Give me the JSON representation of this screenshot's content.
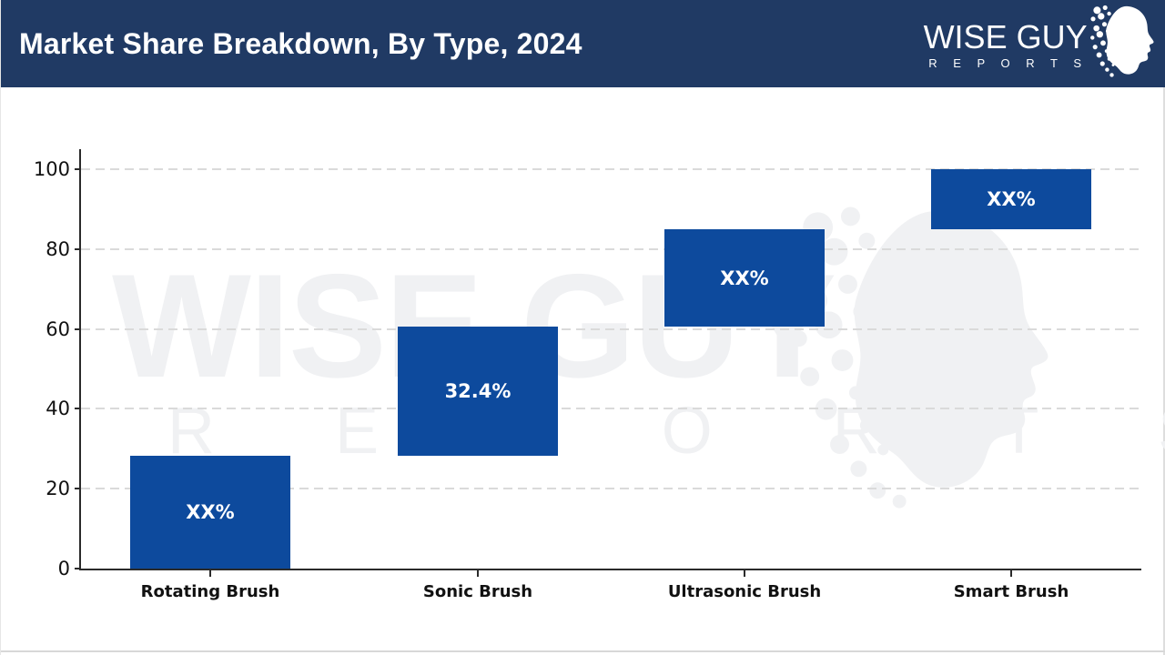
{
  "header": {
    "title": "Market Share Breakdown, By Type, 2024",
    "background_color": "#203a64",
    "logo": {
      "line1": "WISE GUY",
      "line2": "R E P O R T S"
    }
  },
  "watermark": {
    "line1": "WISE GUY",
    "line2": "R E P O R T S"
  },
  "chart_data": {
    "type": "bar",
    "subtype": "waterfall",
    "title": "Market Share Breakdown, By Type, 2024",
    "categories": [
      "Rotating Brush",
      "Sonic Brush",
      "Ultrasonic Brush",
      "Smart Brush"
    ],
    "segments": [
      {
        "category": "Rotating Brush",
        "start": 0,
        "end": 28.2,
        "label": "XX%"
      },
      {
        "category": "Sonic Brush",
        "start": 28.2,
        "end": 60.6,
        "label": "32.4%"
      },
      {
        "category": "Ultrasonic Brush",
        "start": 60.6,
        "end": 84.9,
        "label": "XX%"
      },
      {
        "category": "Smart Brush",
        "start": 84.9,
        "end": 100,
        "label": "XX%"
      }
    ],
    "yticks": [
      0,
      20,
      40,
      60,
      80,
      100
    ],
    "ylim": [
      0,
      105
    ],
    "xlabel": "",
    "ylabel": "",
    "bar_color": "#0d4a9d",
    "label_color": "#ffffff",
    "grid": "horizontal-dashed",
    "gridline_color": "#dadada",
    "legend": "none"
  }
}
